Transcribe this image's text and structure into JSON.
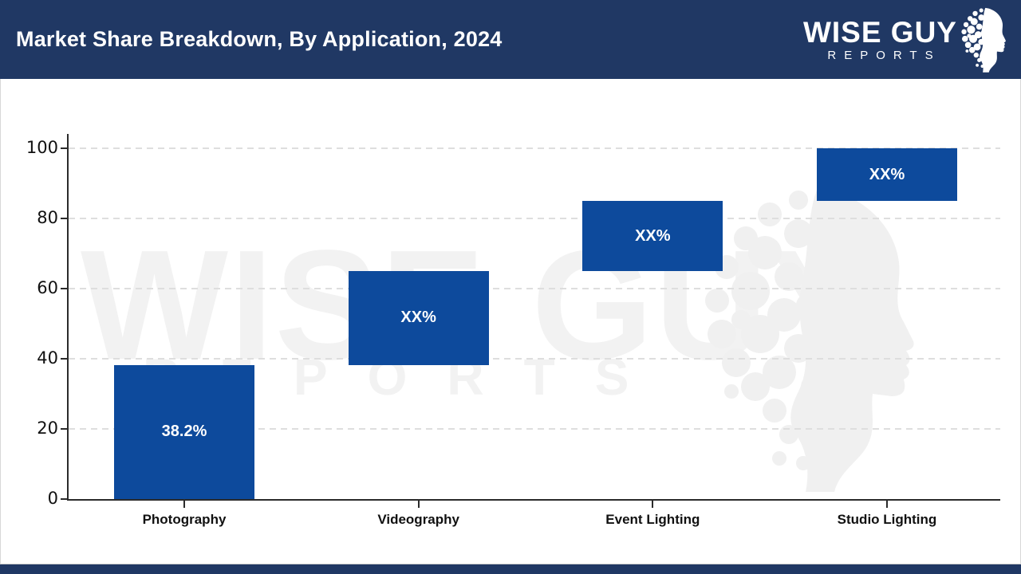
{
  "header": {
    "title": "Market Share Breakdown, By Application, 2024",
    "logo": {
      "line1": "WISE GUY",
      "line2": "REPORTS",
      "icon": "dotted-head-profile"
    }
  },
  "watermark": {
    "line1": "WISE GUY",
    "line2": "REPORTS",
    "icon": "dotted-head-profile"
  },
  "colors": {
    "header_navy": "#203864",
    "bar_blue": "#0d4a9c",
    "gridline": "#dedede",
    "axis": "#2b2b2b",
    "watermark_gray": "#f2f2f2"
  },
  "chart_data": {
    "type": "bar",
    "subtype": "waterfall-floating-bars",
    "title": "Market Share Breakdown, By Application, 2024",
    "categories": [
      "Photography",
      "Videography",
      "Event Lighting",
      "Studio Lighting"
    ],
    "segments": [
      {
        "category": "Photography",
        "start": 0,
        "end": 38.2,
        "label": "38.2%"
      },
      {
        "category": "Videography",
        "start": 38.2,
        "end": 65,
        "label": "XX%"
      },
      {
        "category": "Event Lighting",
        "start": 65,
        "end": 85,
        "label": "XX%"
      },
      {
        "category": "Studio Lighting",
        "start": 85,
        "end": 100,
        "label": "XX%"
      }
    ],
    "xlabel": "",
    "ylabel": "",
    "ylim": [
      0,
      100
    ],
    "yticks": [
      0,
      20,
      40,
      60,
      80,
      100
    ],
    "grid": "dashed horizontal gridlines",
    "legend": "none",
    "bar_color": "#0d4a9c",
    "bar_label_color": "#ffffff"
  }
}
